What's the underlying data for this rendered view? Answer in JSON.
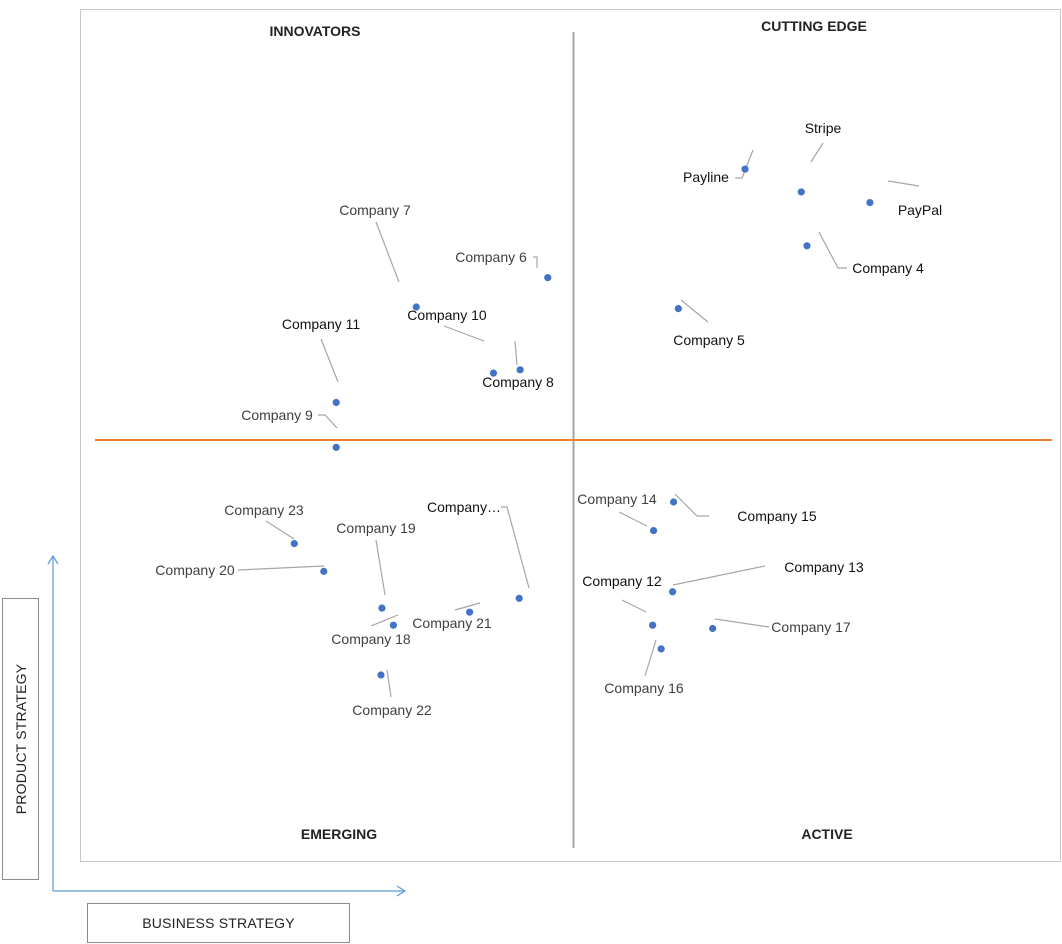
{
  "chart_data": {
    "type": "scatter",
    "title": "",
    "xlabel": "BUSINESS STRATEGY",
    "ylabel": "PRODUCT STRATEGY",
    "xlim": [
      0,
      100
    ],
    "ylim": [
      0,
      100
    ],
    "divider_x": 50,
    "divider_y": 50,
    "quadrants": {
      "top_left": "INNOVATORS",
      "top_right": "CUTTING EDGE",
      "bottom_left": "EMERGING",
      "bottom_right": "ACTIVE"
    },
    "points": [
      {
        "label": "Stripe",
        "x": 73.9,
        "y": 80.4,
        "bold": true
      },
      {
        "label": "Payline",
        "x": 68.0,
        "y": 83.2,
        "bold": true
      },
      {
        "label": "PayPal",
        "x": 81.1,
        "y": 79.1,
        "bold": true
      },
      {
        "label": "Company 4",
        "x": 74.5,
        "y": 73.8,
        "bold": true
      },
      {
        "label": "Company 5",
        "x": 61.0,
        "y": 66.1,
        "bold": true
      },
      {
        "label": "Company 6",
        "x": 47.3,
        "y": 69.9,
        "bold": false
      },
      {
        "label": "Company 7",
        "x": 33.5,
        "y": 66.3,
        "bold": false
      },
      {
        "label": "Company 8",
        "x": 44.4,
        "y": 58.6,
        "bold": true
      },
      {
        "label": "Company 9",
        "x": 25.1,
        "y": 49.1,
        "bold": false
      },
      {
        "label": "Company 10",
        "x": 41.6,
        "y": 58.2,
        "bold": true
      },
      {
        "label": "Company 11",
        "x": 25.1,
        "y": 54.6,
        "bold": true
      },
      {
        "label": "Company 12",
        "x": 58.3,
        "y": 27.3,
        "bold": true
      },
      {
        "label": "Company 13",
        "x": 60.4,
        "y": 31.4,
        "bold": true
      },
      {
        "label": "Company 14",
        "x": 58.4,
        "y": 38.9,
        "bold": false
      },
      {
        "label": "Company 15",
        "x": 60.5,
        "y": 42.4,
        "bold": true
      },
      {
        "label": "Company 16",
        "x": 59.2,
        "y": 24.4,
        "bold": false
      },
      {
        "label": "Company 17",
        "x": 64.6,
        "y": 26.9,
        "bold": false
      },
      {
        "label": "Company 18",
        "x": 31.1,
        "y": 27.3,
        "bold": false
      },
      {
        "label": "Company 19",
        "x": 29.9,
        "y": 29.4,
        "bold": false
      },
      {
        "label": "Company 20",
        "x": 23.8,
        "y": 33.9,
        "bold": false
      },
      {
        "label": "Company 21",
        "x": 39.1,
        "y": 28.9,
        "bold": false
      },
      {
        "label": "Company 22",
        "x": 29.8,
        "y": 21.2,
        "bold": false
      },
      {
        "label": "Company 23",
        "x": 20.7,
        "y": 37.3,
        "bold": false
      },
      {
        "label": "Company…",
        "x": 44.3,
        "y": 30.6,
        "bold": true
      }
    ],
    "marker_color": "#4472c4",
    "horizontal_divider_color": "#ed7d31",
    "vertical_divider_color": "#a6a6a6",
    "leader_line_color": "#a6a6a6",
    "axis_arrow_color": "#5b9bd5"
  }
}
